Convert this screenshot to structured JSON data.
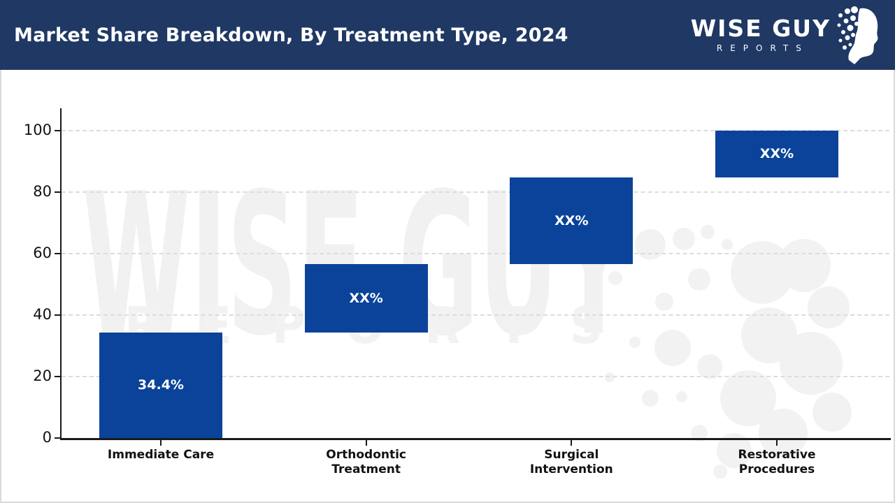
{
  "header": {
    "title": "Market Share Breakdown, By Treatment Type, 2024",
    "brand": {
      "name": "WISE GUY",
      "sub": "REPORTS"
    }
  },
  "watermark": {
    "line1": "WISE GUY",
    "line2": "REPORTS"
  },
  "chart_data": {
    "type": "bar",
    "subtype": "floating-waterfall-segments",
    "title": "Market Share Breakdown, By Treatment Type, 2024",
    "categories": [
      "Immediate Care",
      "Orthodontic Treatment",
      "Surgical Intervention",
      "Restorative Procedures"
    ],
    "segments": [
      {
        "category": "Immediate Care",
        "lines": [
          "Immediate Care"
        ],
        "start": 0,
        "end": 34.4,
        "label": "34.4%"
      },
      {
        "category": "Orthodontic Treatment",
        "lines": [
          "Orthodontic",
          "Treatment"
        ],
        "start": 34.4,
        "end": 56.5,
        "label": "XX%"
      },
      {
        "category": "Surgical Intervention",
        "lines": [
          "Surgical",
          "Intervention"
        ],
        "start": 56.5,
        "end": 84.8,
        "label": "XX%"
      },
      {
        "category": "Restorative Procedures",
        "lines": [
          "Restorative",
          "Procedures"
        ],
        "start": 84.8,
        "end": 100,
        "label": "XX%"
      }
    ],
    "y_ticks": [
      0,
      20,
      40,
      60,
      80,
      100
    ],
    "ylim": [
      0,
      105
    ],
    "xlabel": "",
    "ylabel": "",
    "grid": "horizontal-dashed",
    "legend": "none",
    "colors": {
      "bar": "#0a4399",
      "bar_label": "#ffffff",
      "header_bg": "#1f3864",
      "axis": "#1a1a1a",
      "grid": "#dcdcdc",
      "watermark": "#f1f1f1",
      "tick_text": "#111111"
    }
  }
}
